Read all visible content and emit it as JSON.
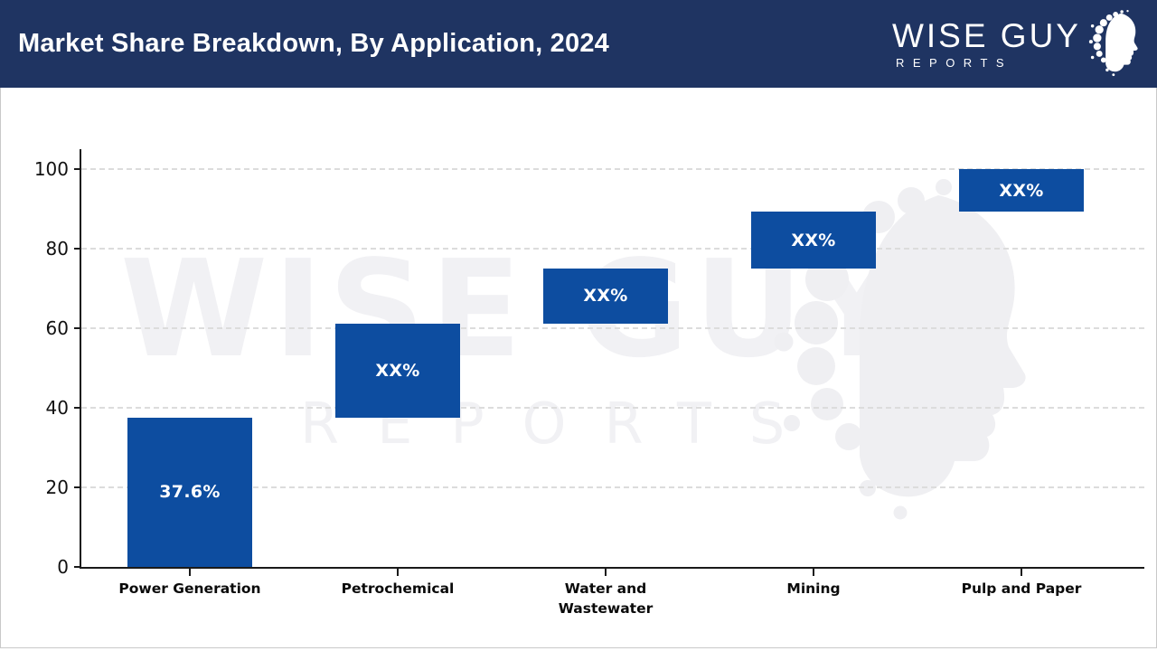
{
  "header": {
    "title": "Market Share Breakdown, By Application, 2024",
    "logo": {
      "line1": "WISE GUY",
      "line2": "REPORTS",
      "icon": "dotted-head-profile"
    }
  },
  "watermark": {
    "line1": "WISE GUY",
    "line2": "REPORTS"
  },
  "colors": {
    "header_bg": "#1f3462",
    "bar": "#0d4da0",
    "grid": "#dcdcdc",
    "axis": "#1a1a1a",
    "watermark": "#f1f1f4",
    "panel_border": "#c9c9c9"
  },
  "chart_data": {
    "type": "bar",
    "subtype": "waterfall",
    "title": "Market Share Breakdown, By Application, 2024",
    "categories": [
      "Power Generation",
      "Petrochemical",
      "Water and\nWastewater",
      "Mining",
      "Pulp and Paper"
    ],
    "segments": [
      {
        "category": "Power Generation",
        "label": "37.6%",
        "start": 0,
        "end": 37.6
      },
      {
        "category": "Petrochemical",
        "label": "XX%",
        "start": 37.6,
        "end": 61.2
      },
      {
        "category": "Water and Wastewater",
        "label": "XX%",
        "start": 61.2,
        "end": 75.0
      },
      {
        "category": "Mining",
        "label": "XX%",
        "start": 75.0,
        "end": 89.3
      },
      {
        "category": "Pulp and Paper",
        "label": "XX%",
        "start": 89.3,
        "end": 100
      }
    ],
    "y_ticks": [
      0,
      20,
      40,
      60,
      80,
      100
    ],
    "ylim": [
      0,
      105
    ],
    "xlabel": "",
    "ylabel": "",
    "legend": "none",
    "grid": "horizontal-dashed"
  }
}
